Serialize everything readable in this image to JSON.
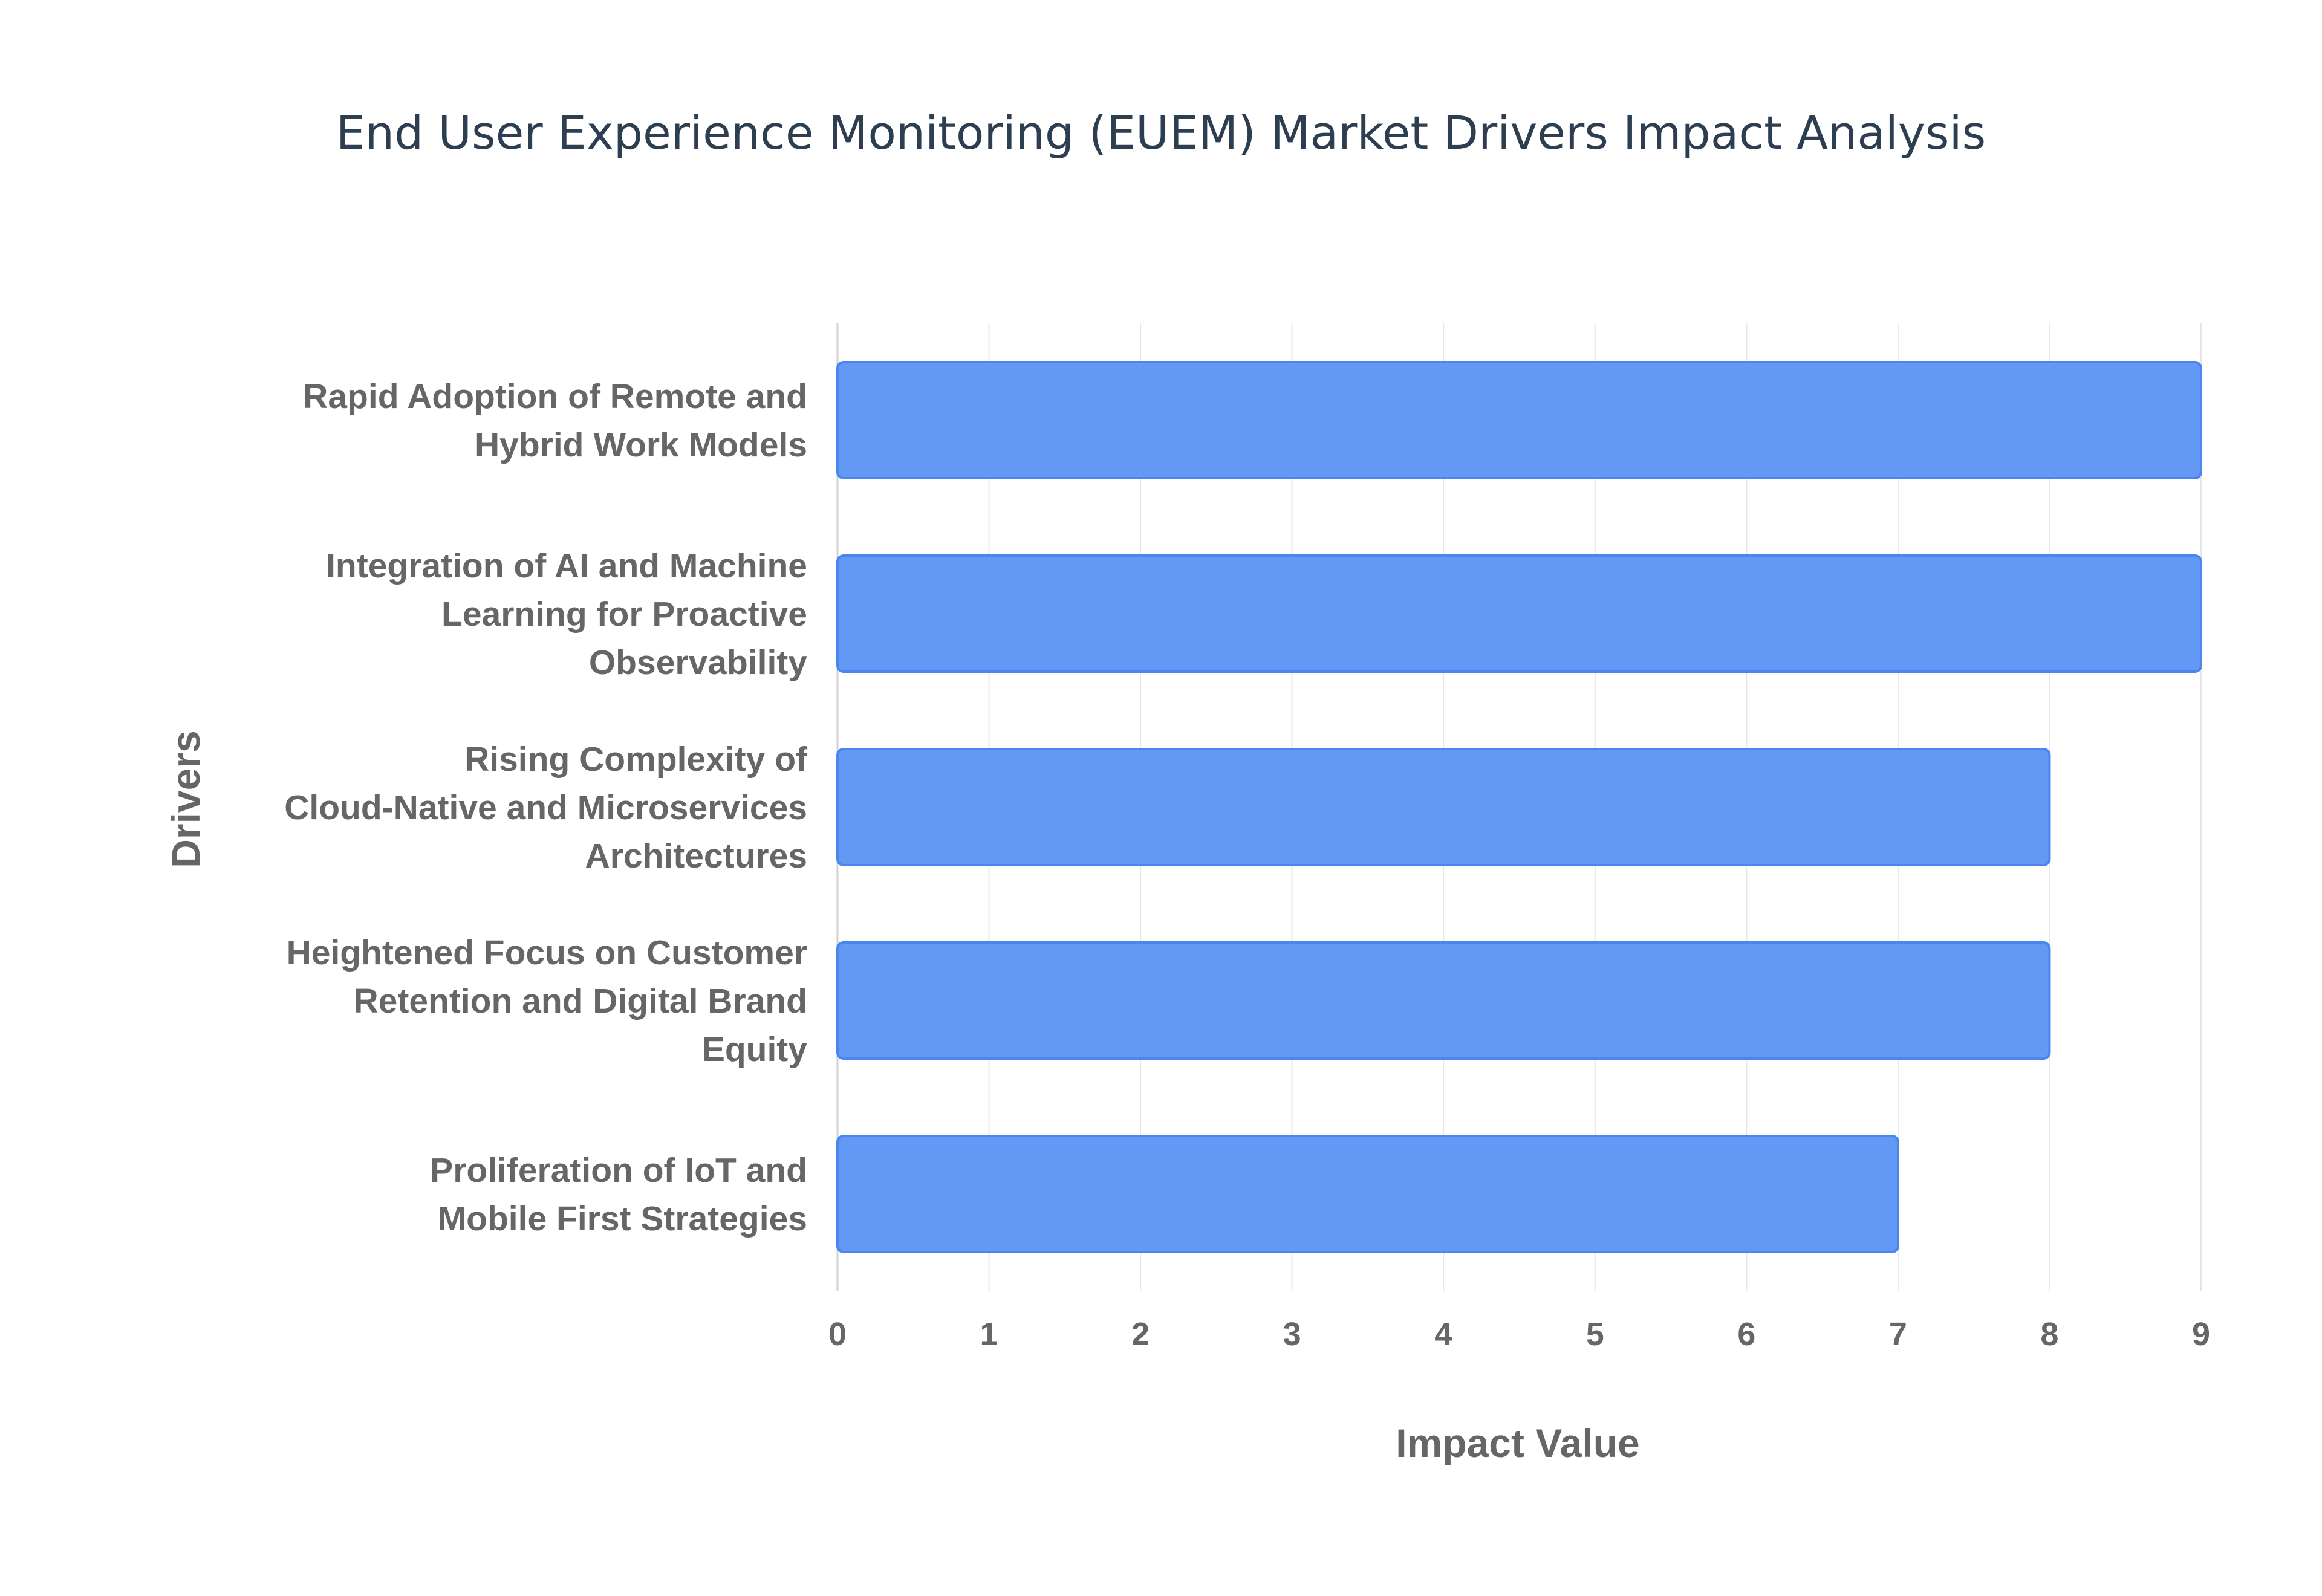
{
  "chart_data": {
    "type": "bar",
    "orientation": "horizontal",
    "title": "End User Experience Monitoring (EUEM) Market Drivers Impact Analysis",
    "xlabel": "Impact Value",
    "ylabel": "Drivers",
    "xlim": [
      0,
      9
    ],
    "xticks": [
      "0",
      "1",
      "2",
      "3",
      "4",
      "5",
      "6",
      "7",
      "8",
      "9"
    ],
    "categories": [
      [
        "Rapid Adoption of Remote and",
        "Hybrid Work Models"
      ],
      [
        "Integration of AI and Machine",
        "Learning for Proactive",
        "Observability"
      ],
      [
        "Rising Complexity of",
        "Cloud-Native and Microservices",
        "Architectures"
      ],
      [
        "Heightened Focus on Customer",
        "Retention and Digital Brand",
        "Equity"
      ],
      [
        "Proliferation of IoT and",
        "Mobile First Strategies"
      ]
    ],
    "values": [
      9,
      9,
      8,
      8,
      7
    ],
    "grid": true,
    "colors": {
      "bar_fill": "#6399f5",
      "bar_stroke": "#4a86ee",
      "grid": "#e6e6e6",
      "text": "#666666",
      "title": "#2c3e50"
    }
  }
}
